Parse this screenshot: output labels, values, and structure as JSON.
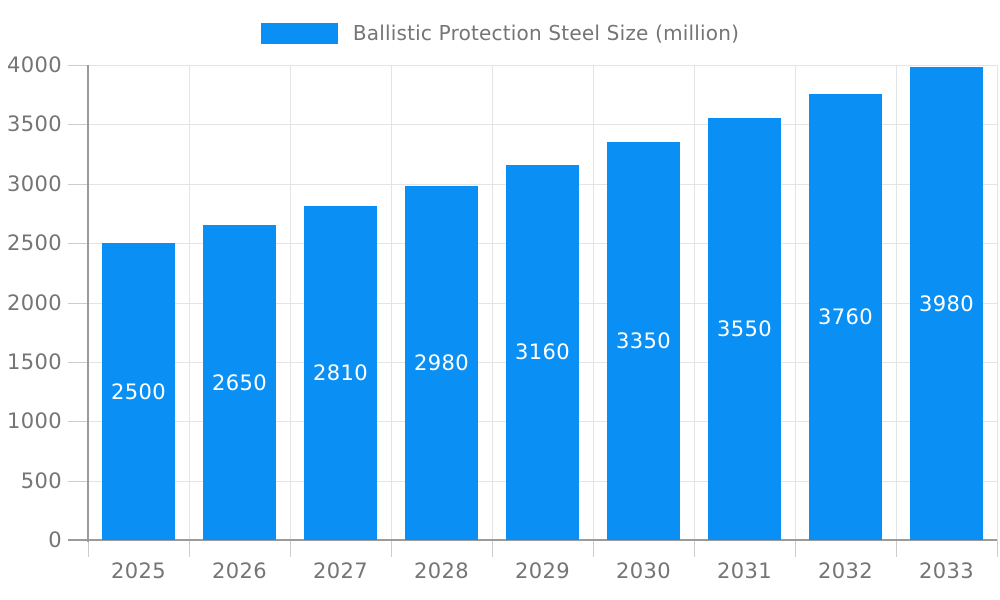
{
  "legend": {
    "position": "top",
    "label": "Ballistic Protection Steel Size (million)"
  },
  "chart_data": {
    "type": "bar",
    "title": "Ballistic Protection Steel Size (million)",
    "categories": [
      "2025",
      "2026",
      "2027",
      "2028",
      "2029",
      "2030",
      "2031",
      "2032",
      "2033"
    ],
    "values": [
      2500,
      2650,
      2810,
      2980,
      3160,
      3350,
      3550,
      3760,
      3980
    ],
    "xlabel": "",
    "ylabel": "",
    "ylim": [
      0,
      4000
    ],
    "ytick_step": 500,
    "yticks": [
      0,
      500,
      1000,
      1500,
      2000,
      2500,
      3000,
      3500,
      4000
    ],
    "grid": true,
    "legend_position": "top",
    "bar_labels_visible": true,
    "bar_label_position": "center"
  },
  "colors": {
    "bar": "#0a90f4",
    "axis_text": "#757575",
    "legend_text": "#757575",
    "grid_line": "#e4e4e4",
    "axis_line": "#9b9b9b",
    "tick": "#cccccc",
    "bar_value_label": "#ffffff",
    "background": "#ffffff"
  }
}
